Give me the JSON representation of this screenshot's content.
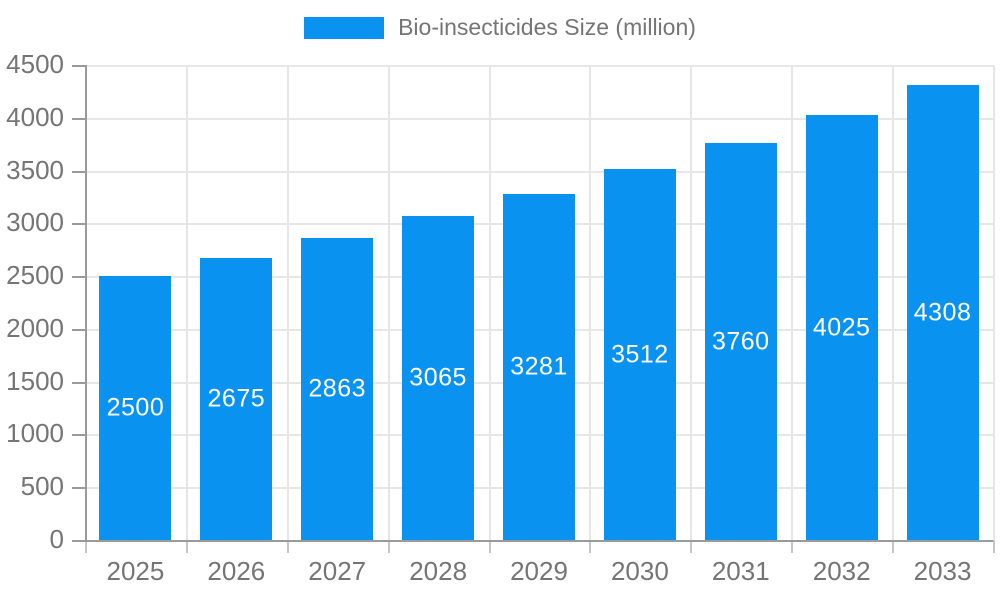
{
  "chart_data": {
    "type": "bar",
    "legend": "Bio-insecticides Size (million)",
    "legend_position": "top",
    "categories": [
      "2025",
      "2026",
      "2027",
      "2028",
      "2029",
      "2030",
      "2031",
      "2032",
      "2033"
    ],
    "values": [
      2500,
      2675,
      2863,
      3065,
      3281,
      3512,
      3760,
      4025,
      4308
    ],
    "xlabel": "",
    "ylabel": "",
    "ylim": [
      0,
      4500
    ],
    "yticks": [
      0,
      500,
      1000,
      1500,
      2000,
      2500,
      3000,
      3500,
      4000,
      4500
    ],
    "grid": true,
    "value_labels": "inside-center-white",
    "colors": {
      "bar": "#0992f0",
      "grid": "#e7e7e7",
      "axis_line": "#9a9a9a",
      "outer_tick": "#c6c6c6",
      "axis_text": "#757575",
      "value_text": "#ffffff"
    }
  }
}
